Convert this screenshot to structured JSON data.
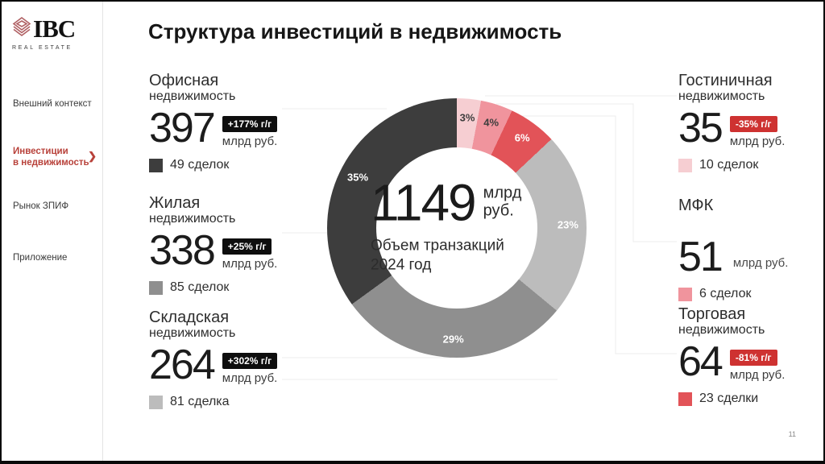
{
  "page": {
    "number": "11"
  },
  "logo": {
    "name": "IBC",
    "tagline": "REAL ESTATE"
  },
  "sidebar": {
    "chevron": "❯",
    "items": [
      {
        "line1": "Внешний контекст",
        "line2": ""
      },
      {
        "line1": "Инвестиции",
        "line2": "в недвижимость"
      },
      {
        "line1": "Рынок ЗПИФ",
        "line2": ""
      },
      {
        "line1": "Приложение",
        "line2": ""
      }
    ]
  },
  "title": "Структура инвестиций в недвижимость",
  "donut_center": {
    "value": "1149",
    "unit_line1": "млрд",
    "unit_line2": "руб.",
    "caption_line1": "Объем транзакций",
    "caption_line2": "2024 год"
  },
  "blocks": {
    "left": [
      {
        "name_line1": "Офисная",
        "name_line2": "недвижимость",
        "value": "397",
        "badge": "+177% г/г",
        "unit": "млрд руб.",
        "deals": "49 сделок"
      },
      {
        "name_line1": "Жилая",
        "name_line2": "недвижимость",
        "value": "338",
        "badge": "+25% г/г",
        "unit": "млрд руб.",
        "deals": "85 сделок"
      },
      {
        "name_line1": "Складская",
        "name_line2": "недвижимость",
        "value": "264",
        "badge": "+302% г/г",
        "unit": "млрд руб.",
        "deals": "81 сделка"
      }
    ],
    "right": [
      {
        "name_line1": "Гостиничная",
        "name_line2": "недвижимость",
        "value": "35",
        "badge": "-35% г/г",
        "unit": "млрд руб.",
        "deals": "10 сделок"
      },
      {
        "name_line1": "МФК",
        "name_line2": "",
        "value": "51",
        "unit": "млрд руб.",
        "deals": "6 сделок"
      },
      {
        "name_line1": "Торговая",
        "name_line2": "недвижимость",
        "value": "64",
        "badge": "-81% г/г",
        "unit": "млрд руб.",
        "deals": "23 сделки"
      }
    ]
  },
  "chart_data": {
    "type": "pie",
    "subtype": "donut",
    "title": "Структура инвестиций в недвижимость",
    "total": {
      "value": 1149,
      "unit": "млрд руб.",
      "caption": "Объем транзакций 2024 год"
    },
    "direction": "clockwise",
    "start_angle_deg": 0,
    "segments": [
      {
        "label": "Гостиничная недвижимость",
        "percent": 3,
        "value_mlrd_rub": 35,
        "yoy": "-35% г/г",
        "deals": "10 сделок",
        "color": "#f6ced2",
        "label_color": "#3d3d3d"
      },
      {
        "label": "МФК",
        "percent": 4,
        "value_mlrd_rub": 51,
        "yoy": null,
        "deals": "6 сделок",
        "color": "#f0949d",
        "label_color": "#3d3d3d"
      },
      {
        "label": "Торговая недвижимость",
        "percent": 6,
        "value_mlrd_rub": 64,
        "yoy": "-81% г/г",
        "deals": "23 сделки",
        "color": "#e25358",
        "label_color": "#ffffff"
      },
      {
        "label": "Складская недвижимость",
        "percent": 23,
        "value_mlrd_rub": 264,
        "yoy": "+302% г/г",
        "deals": "81 сделка",
        "color": "#bcbcbc",
        "label_color": "#ffffff"
      },
      {
        "label": "Жилая недвижимость",
        "percent": 29,
        "value_mlrd_rub": 338,
        "yoy": "+25% г/г",
        "deals": "85 сделок",
        "color": "#8f8f8f",
        "label_color": "#ffffff"
      },
      {
        "label": "Офисная недвижимость",
        "percent": 35,
        "value_mlrd_rub": 397,
        "yoy": "+177% г/г",
        "deals": "49 сделок",
        "color": "#3d3d3d",
        "label_color": "#ffffff"
      }
    ]
  },
  "colors": {
    "badge_black": "#0e0e0e",
    "badge_red": "#ce3231",
    "sidebar_active_red": "#b8413a",
    "line_gray": "#ececec"
  }
}
